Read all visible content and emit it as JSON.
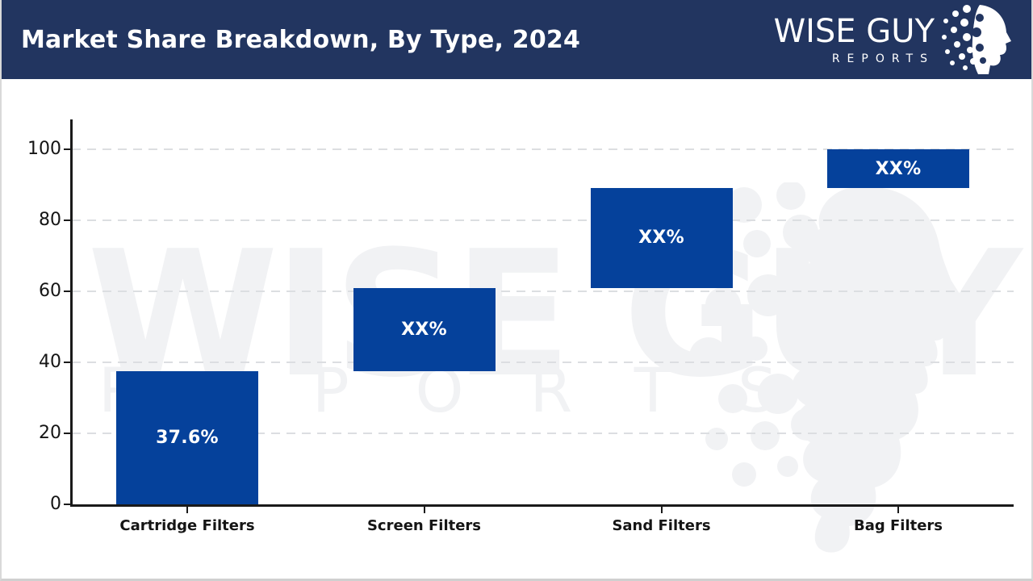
{
  "header": {
    "title": "Market Share Breakdown, By Type, 2024",
    "logo": {
      "line1": "WISE GUY",
      "line2": "REPORTS"
    }
  },
  "watermark": {
    "line1": "WISE GUY",
    "line2": "REPORTS"
  },
  "colors": {
    "header_bg": "#223560",
    "bar": "#05419b",
    "bar_label": "#ffffff",
    "axis": "#1a1a1a",
    "grid": "#dcdee1",
    "tick_label": "#151515",
    "watermark": "#f1f2f4"
  },
  "chart_data": {
    "type": "bar",
    "style": "floating-waterfall",
    "title": "Market Share Breakdown, By Type, 2024",
    "categories": [
      "Cartridge Filters",
      "Screen Filters",
      "Sand Filters",
      "Bag Filters"
    ],
    "segments": [
      {
        "category": "Cartridge Filters",
        "start": 0,
        "end": 37.6,
        "label": "37.6%"
      },
      {
        "category": "Screen Filters",
        "start": 37.6,
        "end": 61,
        "label": "XX%"
      },
      {
        "category": "Sand Filters",
        "start": 61,
        "end": 89,
        "label": "XX%"
      },
      {
        "category": "Bag Filters",
        "start": 89,
        "end": 100,
        "label": "XX%"
      }
    ],
    "ylim": [
      0,
      105
    ],
    "yticks": [
      0,
      20,
      40,
      60,
      80,
      100
    ],
    "xlabel": "",
    "ylabel": "",
    "grid": "horizontal-dashed",
    "legend": "none"
  }
}
